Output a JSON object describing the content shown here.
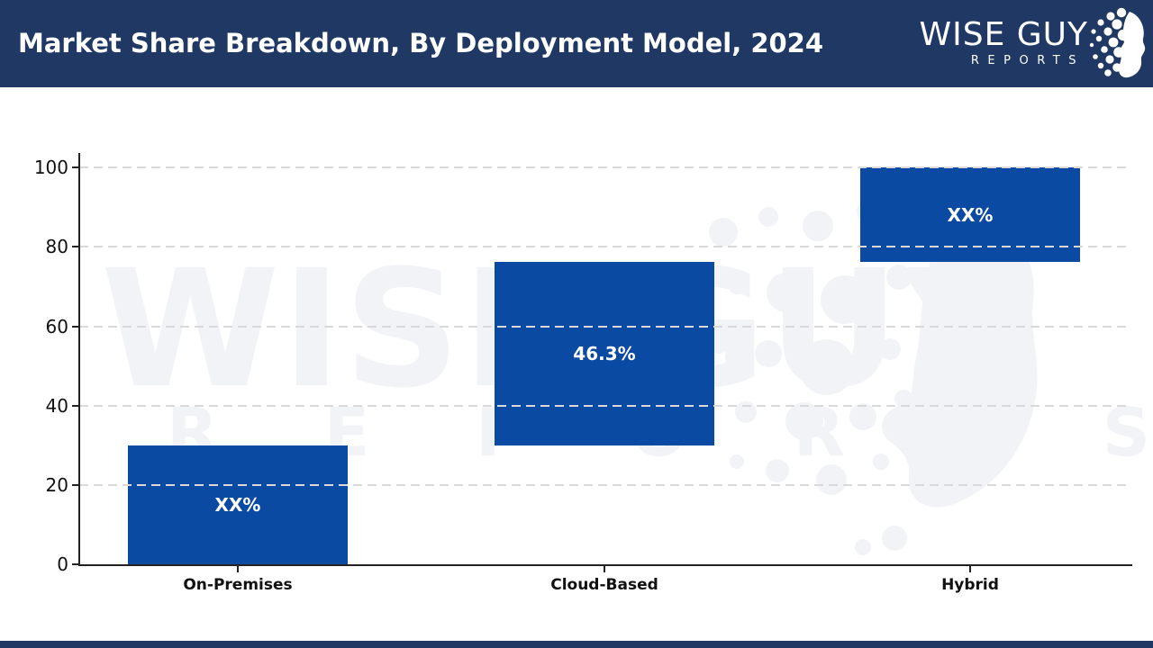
{
  "header": {
    "title": "Market Share Breakdown, By Deployment Model, 2024",
    "logo": {
      "line1": "WISE GUY",
      "line2": "REPORTS"
    }
  },
  "watermark": {
    "line1": "WISE GUY",
    "line2": "R E P O R T S"
  },
  "colors": {
    "header_bg": "#1F3864",
    "footer_bg": "#1F3864",
    "bar": "#0B4AA2",
    "bar_label_text": "#FFFFFF",
    "gridline": "#D9D9D9",
    "axis": "#222222",
    "watermark": "#F2F3F6"
  },
  "chart_data": {
    "type": "bar",
    "subtype": "floating-segment-bars (waterfall-style market share)",
    "title": "Market Share Breakdown, By Deployment Model, 2024",
    "categories": [
      "On-Premises",
      "Cloud-Based",
      "Hybrid"
    ],
    "bars": [
      {
        "category": "On-Premises",
        "start": 0,
        "end": 30,
        "label": "XX%"
      },
      {
        "category": "Cloud-Based",
        "start": 30,
        "end": 76.3,
        "label": "46.3%"
      },
      {
        "category": "Hybrid",
        "start": 76.3,
        "end": 100,
        "label": "XX%"
      }
    ],
    "ylim": [
      0,
      100
    ],
    "yticks": [
      0,
      20,
      40,
      60,
      80,
      100
    ],
    "xlabel": "",
    "ylabel": "",
    "grid": "horizontal dashed, drawn above bars",
    "legend": "none"
  }
}
